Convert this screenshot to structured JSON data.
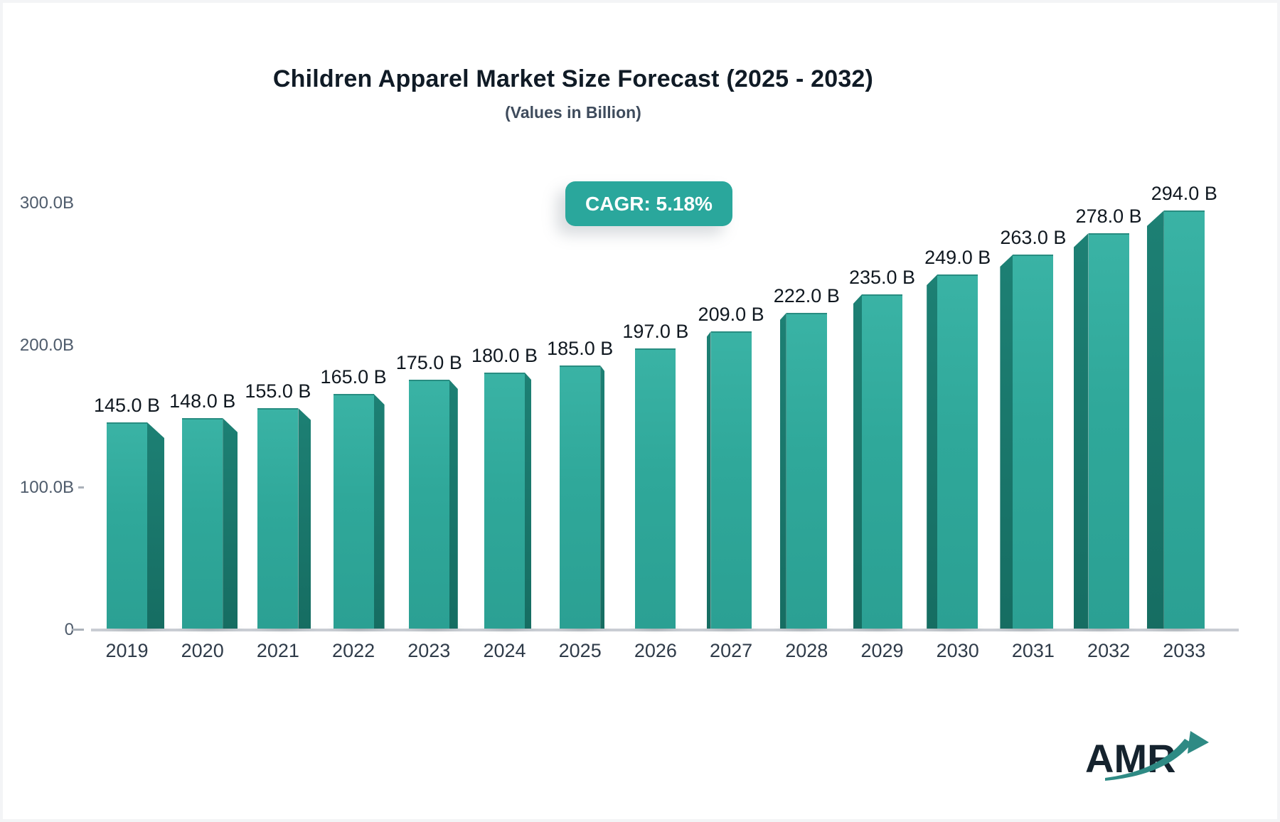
{
  "header": {
    "title": "Children Apparel Market Size Forecast (2025 - 2032)",
    "subtitle": "(Values in Billion)"
  },
  "badge": {
    "label": "CAGR: 5.18%"
  },
  "colors": {
    "accent": "#2aa79c",
    "bar_front_top": "#3ab3a5",
    "bar_front_bottom": "#2ba093",
    "bar_side": "#1b7b70",
    "axis_line": "#d8dbe0",
    "baseline": "#c9cdd3",
    "title_text": "#101b26",
    "subtitle_text": "#3e4b5c",
    "axis_text": "#4e5b6b",
    "year_text": "#2f3b49",
    "value_text": "#101820",
    "badge_text": "#ffffff",
    "logo_text": "#15232e",
    "logo_arrow": "#2e8a84"
  },
  "chart_data": {
    "type": "bar",
    "title": "Children Apparel Market Size Forecast (2025 - 2032)",
    "subtitle": "(Values in Billion)",
    "cagr_annotation": "CAGR: 5.18%",
    "categories": [
      "2019",
      "2020",
      "2021",
      "2022",
      "2023",
      "2024",
      "2025",
      "2026",
      "2027",
      "2028",
      "2029",
      "2030",
      "2031",
      "2032",
      "2033"
    ],
    "values": [
      145,
      148,
      155,
      165,
      175,
      180,
      185,
      197,
      209,
      222,
      235,
      249,
      263,
      278,
      294
    ],
    "value_labels": [
      "145.0 B",
      "148.0 B",
      "155.0 B",
      "165.0 B",
      "175.0 B",
      "180.0 B",
      "185.0 B",
      "197.0 B",
      "209.0 B",
      "222.0 B",
      "235.0 B",
      "249.0 B",
      "263.0 B",
      "278.0 B",
      "294.0 B"
    ],
    "xlabel": "",
    "ylabel": "",
    "ylim": [
      0,
      300
    ],
    "yticks": [
      {
        "label": "300.0B",
        "value": 300
      },
      {
        "label": "200.0B",
        "value": 200
      },
      {
        "label": "100.0B",
        "value": 100
      },
      {
        "label": "0",
        "value": 0
      }
    ],
    "grid": false,
    "legend": false
  },
  "logo": {
    "text": "AMR"
  }
}
